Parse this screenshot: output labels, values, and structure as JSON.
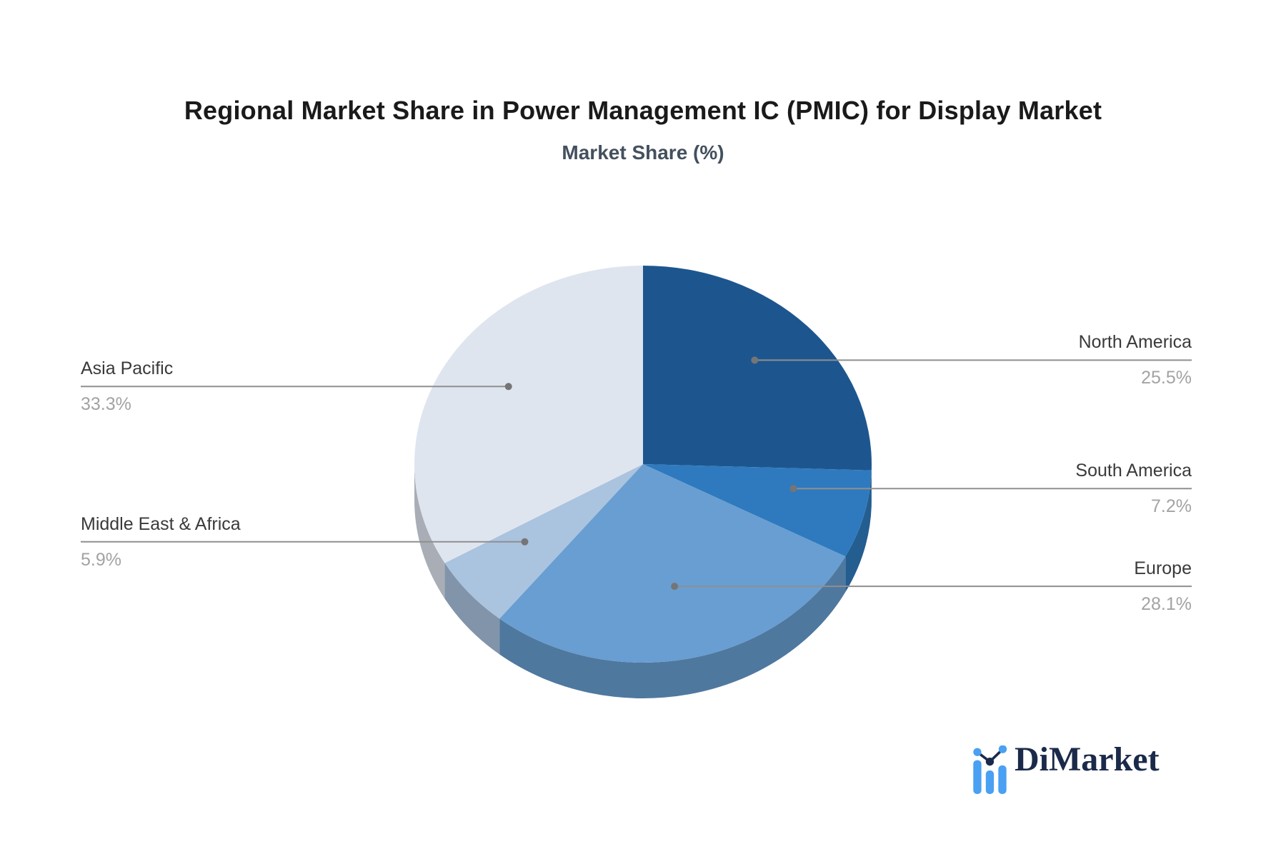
{
  "page": {
    "background": "#ffffff"
  },
  "chart_data": {
    "type": "pie",
    "style": "3d",
    "title": "Regional Market Share in Power Management IC (PMIC) for Display Market",
    "subtitle": "Market Share (%)",
    "unit": "%",
    "direction": "clockwise",
    "start_angle": "12-oclock",
    "legend_position": "none",
    "segments": [
      {
        "label": "North America",
        "value": 25.5,
        "display_value": "25.5%",
        "color": "#1d568f",
        "label_side": "right"
      },
      {
        "label": "South America",
        "value": 7.2,
        "display_value": "7.2%",
        "color": "#2f7abe",
        "label_side": "right"
      },
      {
        "label": "Europe",
        "value": 28.1,
        "display_value": "28.1%",
        "color": "#689ed1",
        "label_side": "right"
      },
      {
        "label": "Middle East & Africa",
        "value": 5.9,
        "display_value": "5.9%",
        "color": "#aac3df",
        "label_side": "left"
      },
      {
        "label": "Asia Pacific",
        "value": 33.3,
        "display_value": "33.3%",
        "color": "#dfe5ef",
        "label_side": "left"
      }
    ]
  },
  "branding": {
    "logo_text": "DiMarket",
    "logo_icon": "bar-line-chart-icon",
    "logo_text_color": "#1b2a4a",
    "logo_accent_color": "#4aa0f2"
  },
  "colors": {
    "title_text": "#1a1a1a",
    "subtitle_text": "#44505e",
    "label_text": "#3a3a3a",
    "value_text": "#a3a3a3",
    "leader_line": "#8f8f8f",
    "leader_dot": "#757575"
  }
}
